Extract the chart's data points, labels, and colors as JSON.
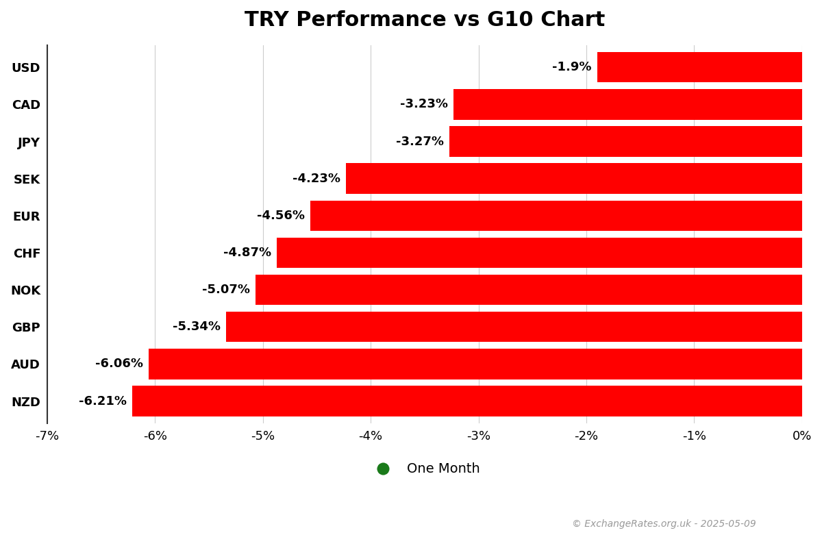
{
  "title": "TRY Performance vs G10 Chart",
  "categories": [
    "NZD",
    "AUD",
    "GBP",
    "NOK",
    "CHF",
    "EUR",
    "SEK",
    "JPY",
    "CAD",
    "USD"
  ],
  "values": [
    -6.21,
    -6.06,
    -5.34,
    -5.07,
    -4.87,
    -4.56,
    -4.23,
    -3.27,
    -3.23,
    -1.9
  ],
  "labels": [
    "-6.21%",
    "-6.06%",
    "-5.34%",
    "-5.07%",
    "-4.87%",
    "-4.56%",
    "-4.23%",
    "-3.27%",
    "-3.23%",
    "-1.9%"
  ],
  "bar_color": "#FF0000",
  "background_color": "#FFFFFF",
  "text_color": "#000000",
  "label_fontsize": 13,
  "title_fontsize": 22,
  "tick_fontsize": 13,
  "xlim": [
    -7,
    0
  ],
  "xticks": [
    -7,
    -6,
    -5,
    -4,
    -3,
    -2,
    -1,
    0
  ],
  "xtick_labels": [
    "-7%",
    "-6%",
    "-5%",
    "-4%",
    "-3%",
    "-2%",
    "-1%",
    "0%"
  ],
  "legend_label": "One Month",
  "legend_marker_color": "#1a7a1a",
  "watermark": "© ExchangeRates.org.uk - 2025-05-09",
  "grid_color": "#CCCCCC",
  "bar_height": 0.82
}
